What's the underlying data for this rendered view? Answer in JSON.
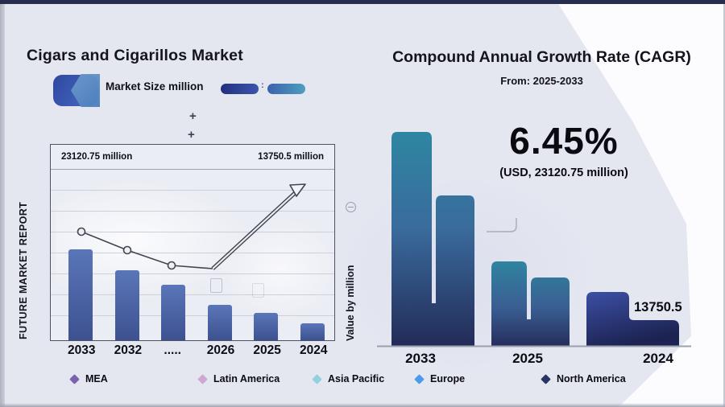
{
  "left_panel": {
    "title": "Cigars and Cigarillos Market",
    "legend_label": "Market Size million",
    "ratio_separator": ":",
    "plus_marks": [
      "+",
      "+"
    ],
    "chart_frame": {
      "top_left_value": "23120.75 million",
      "top_right_value": "13750.5 million",
      "left_side_label": "FUTURE MARKET REPORT",
      "right_side_label": "Value by million"
    }
  },
  "right_panel": {
    "title": "Compound Annual Growth Rate (CAGR)",
    "subtitle": "From: 2025-2033",
    "cagr_value": "6.45%",
    "cagr_note": "(USD, 23120.75 million)",
    "bar_value_label": "13750.5"
  },
  "region_legend": [
    {
      "label": "MEA",
      "color": "#7A63AE"
    },
    {
      "label": "Latin America",
      "color": "#CDA8D5"
    },
    {
      "label": "Asia Pacific",
      "color": "#93D1DF"
    },
    {
      "label": "Europe",
      "color": "#4C9BE8"
    },
    {
      "label": "North America",
      "color": "#2A3566"
    }
  ],
  "chart_data": [
    {
      "type": "bar",
      "title": "Market Size million",
      "categories": [
        "2033",
        "2032",
        ".....",
        "2026",
        "2025",
        "2024"
      ],
      "bar_heights_pct": [
        100,
        77,
        61,
        39,
        30,
        19
      ],
      "labeled_values_million": {
        "2033": 23120.75,
        "2024": 13750.5
      },
      "trendline": {
        "style": "line-with-circle-markers-then-arrow-up",
        "marker_categories": [
          "2033",
          "2032",
          "....."
        ],
        "marker_y_pct_of_height": [
          56,
          46,
          38
        ],
        "arrow_direction": "up-right"
      },
      "ylabel": "Value by million",
      "side_caption": "FUTURE MARKET REPORT",
      "grid": "horizontal",
      "legend_position": "bottom"
    },
    {
      "type": "bar",
      "title": "Compound Annual Growth Rate (CAGR)",
      "subtitle": "From: 2025-2033",
      "categories": [
        "2033",
        "2025",
        "2024"
      ],
      "series": [
        {
          "name": "pair-bar-1",
          "values_pct": [
            100,
            40,
            25
          ]
        },
        {
          "name": "pair-bar-2",
          "values_pct": [
            71,
            32,
            12
          ]
        }
      ],
      "cagr_pct": 6.45,
      "base_value_usd_million": 23120.75,
      "data_label": {
        "category": "2024",
        "value": 13750.5
      },
      "xlabels": [
        "2033",
        "2025",
        "2024"
      ],
      "grid": "off"
    }
  ],
  "colors": {
    "page_bg": "#E5E7F0",
    "top_strip": "#272D4F",
    "left_bar_top": "#5A76B8",
    "left_bar_bottom": "#3D5190",
    "right_teal_top": "#2E86A2",
    "right_navy_bottom": "#232B58",
    "right_indigo_top": "#3C4FA4",
    "text": "#14141E"
  }
}
